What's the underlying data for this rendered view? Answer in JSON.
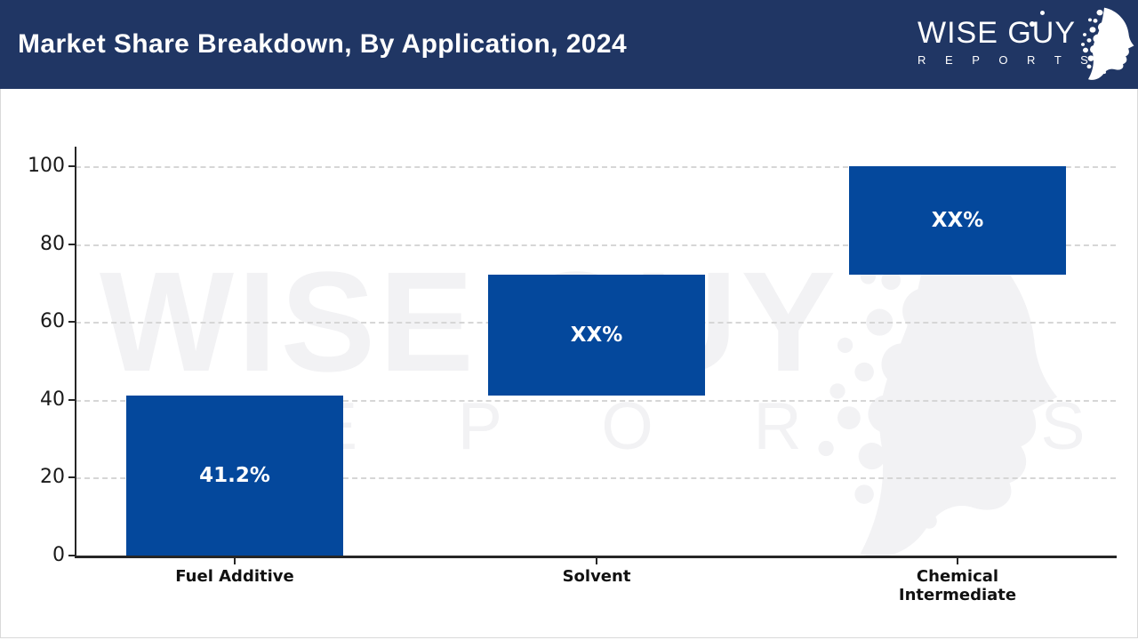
{
  "header": {
    "title": "Market Share Breakdown, By Application, 2024",
    "logo": {
      "brand_line1": "WISE GUY",
      "brand_line2": "R E P O R T S"
    }
  },
  "watermark": {
    "line1": "WISE GUY",
    "line2": "R E P O R T S"
  },
  "chart_data": {
    "type": "bar",
    "subtype": "floating-segment (cumulative share, stacked waterfall to 100%)",
    "title": "Market Share Breakdown, By Application, 2024",
    "categories": [
      "Fuel Additive",
      "Solvent",
      "Chemical Intermediate"
    ],
    "segments": [
      {
        "category": "Fuel Additive",
        "start": 0,
        "end": 41.2,
        "value_label": "41.2%"
      },
      {
        "category": "Solvent",
        "start": 41.2,
        "end": 72.2,
        "value_label": "XX%"
      },
      {
        "category": "Chemical Intermediate",
        "start": 72.2,
        "end": 100,
        "value_label": "XX%"
      }
    ],
    "xlabel": "",
    "ylabel": "",
    "ylim": [
      0,
      100
    ],
    "yticks": [
      0,
      20,
      40,
      60,
      80,
      100
    ],
    "grid": "horizontal dashed",
    "legend": "none",
    "colors": {
      "bar": "#04489c",
      "value_label": "#ffffff",
      "axis": "#262626",
      "gridline": "#d6d6d6",
      "header_bg": "#203664",
      "header_text": "#ffffff",
      "watermark": "#f2f2f4"
    }
  }
}
